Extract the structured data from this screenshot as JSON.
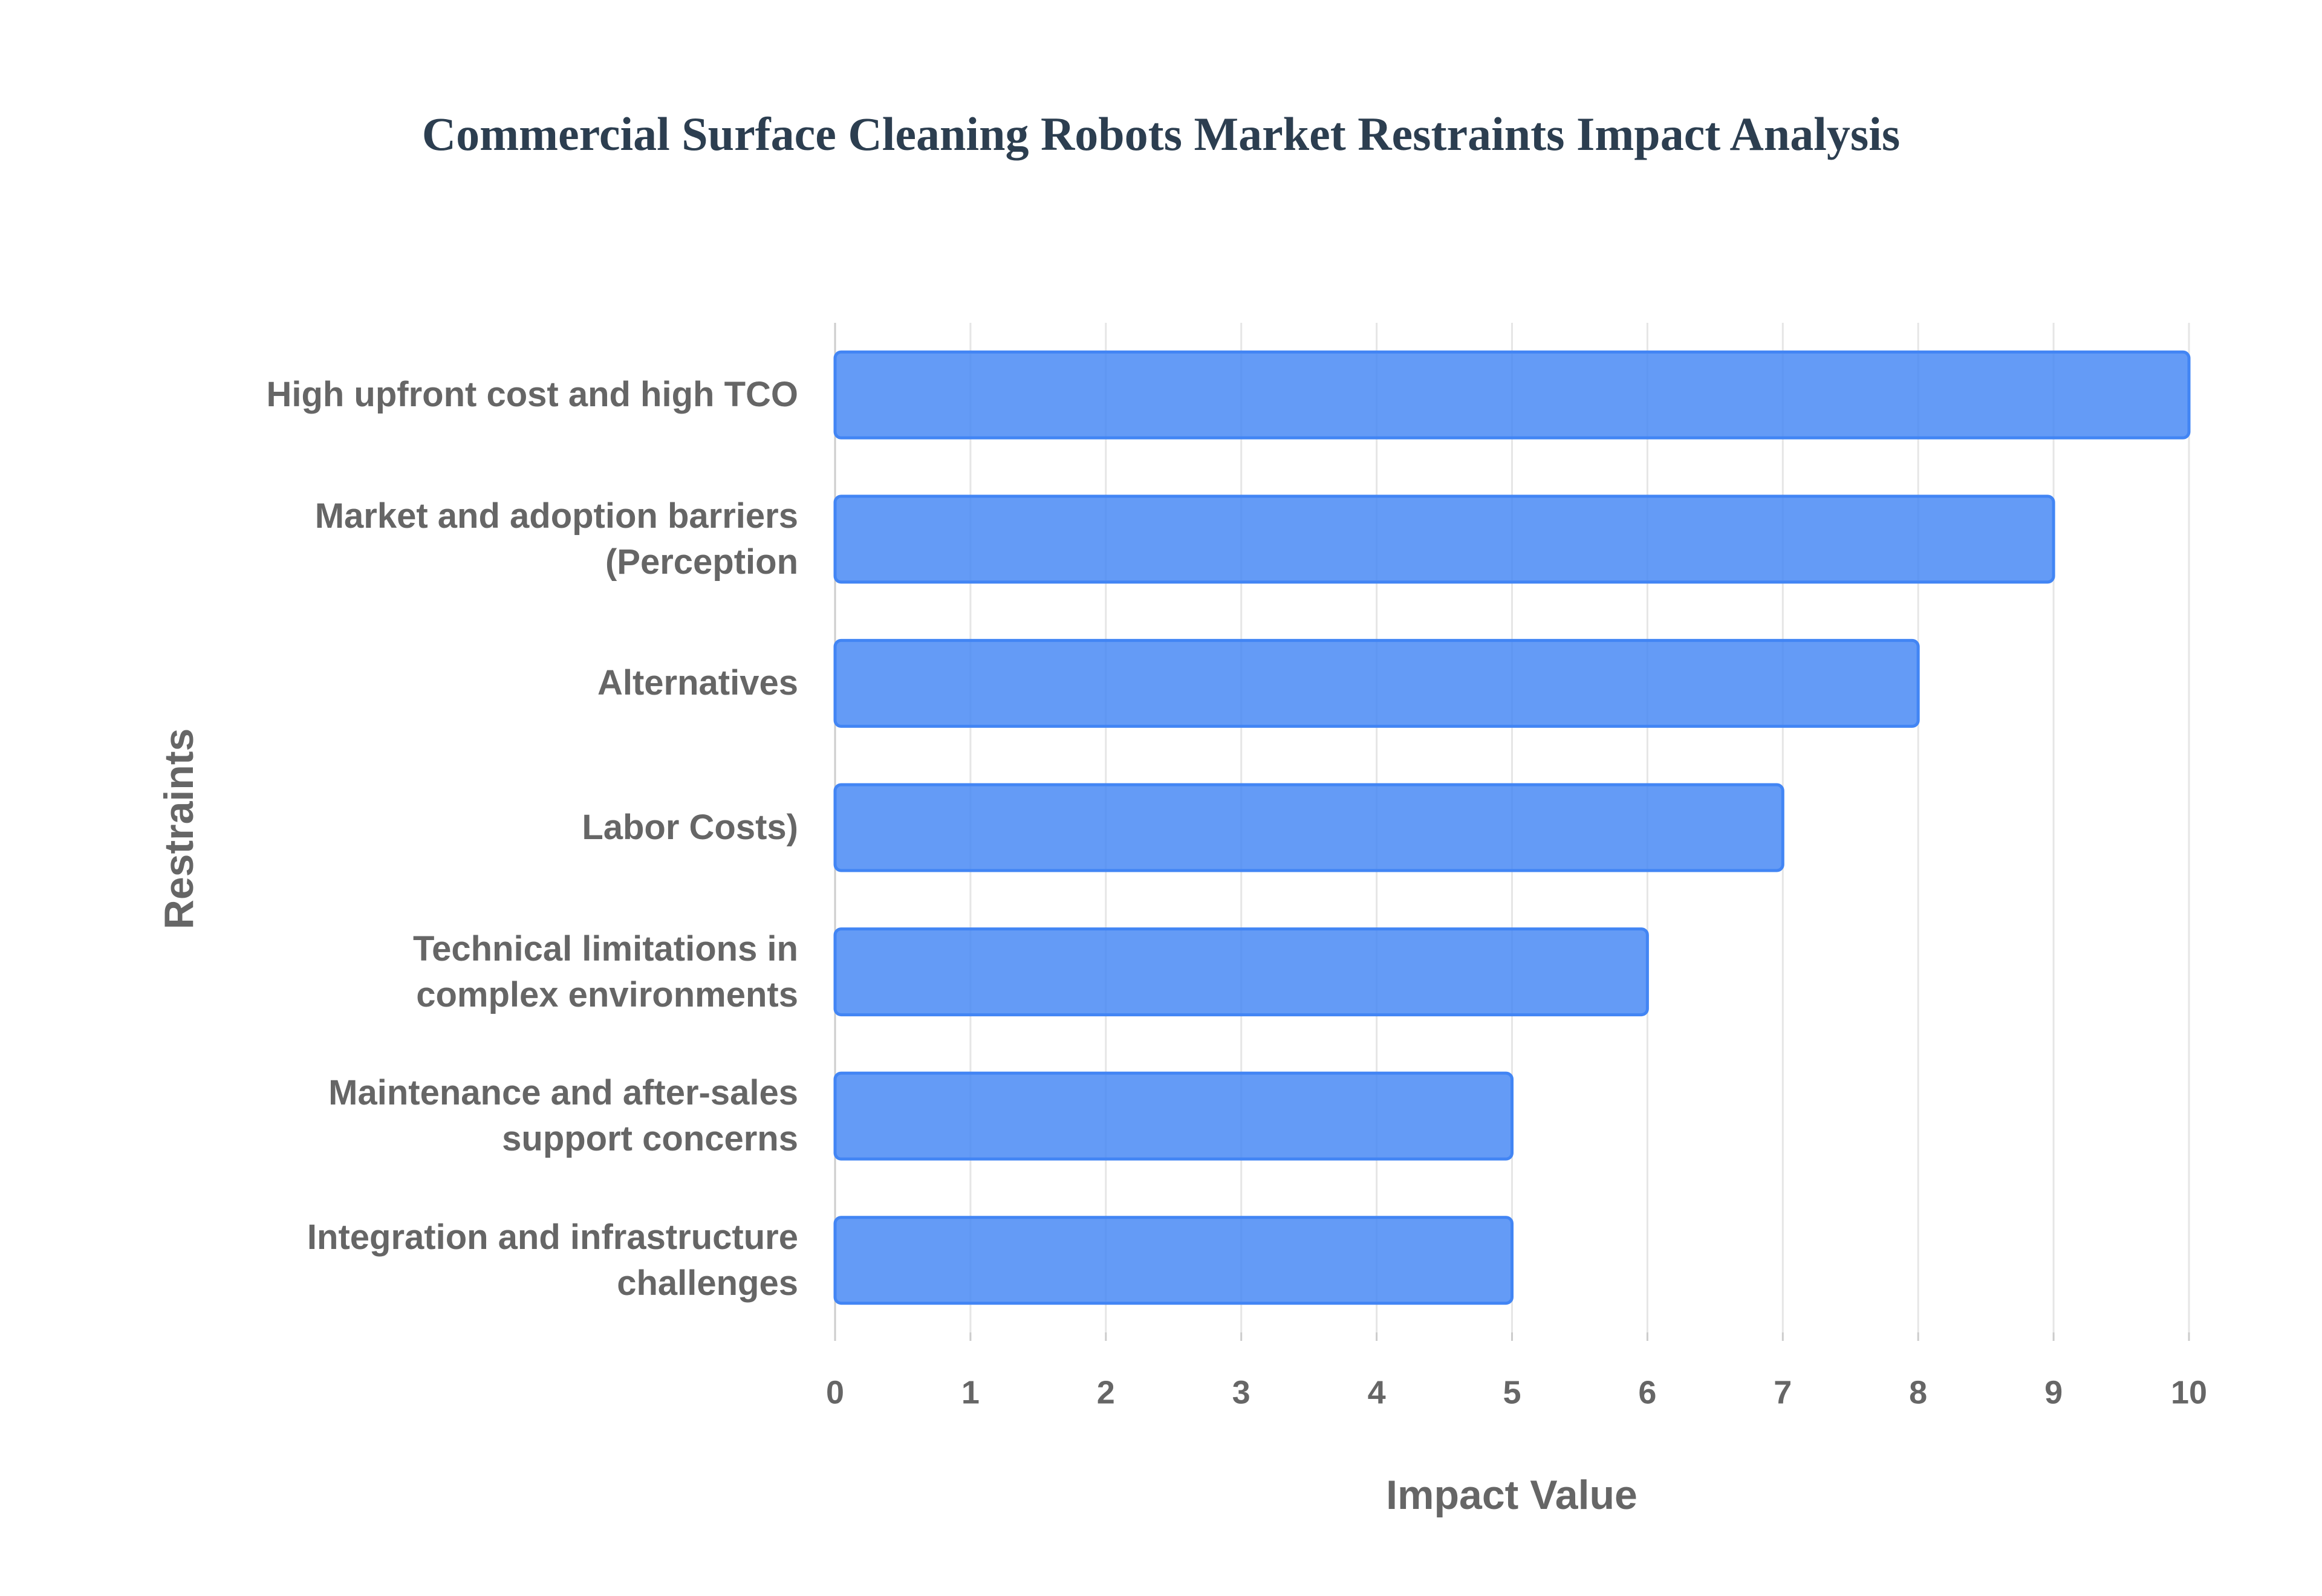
{
  "chart_data": {
    "type": "bar",
    "orientation": "horizontal",
    "title": "Commercial Surface Cleaning Robots Market Restraints Impact Analysis",
    "x_label": "Impact Value",
    "y_label": "Restraints",
    "categories": [
      "High upfront cost and high TCO",
      "Market and adoption barriers\n(Perception",
      "Alternatives",
      "Labor Costs)",
      "Technical limitations in\ncomplex environments",
      "Maintenance and after-sales\nsupport concerns",
      "Integration and infrastructure\nchallenges"
    ],
    "values": [
      10,
      9,
      8,
      7,
      6,
      5,
      5
    ],
    "color": "#4285f4",
    "xlim": [
      0,
      10
    ],
    "xticks": [
      0,
      1,
      2,
      3,
      4,
      5,
      6,
      7,
      8,
      9,
      10
    ],
    "grid": true
  }
}
